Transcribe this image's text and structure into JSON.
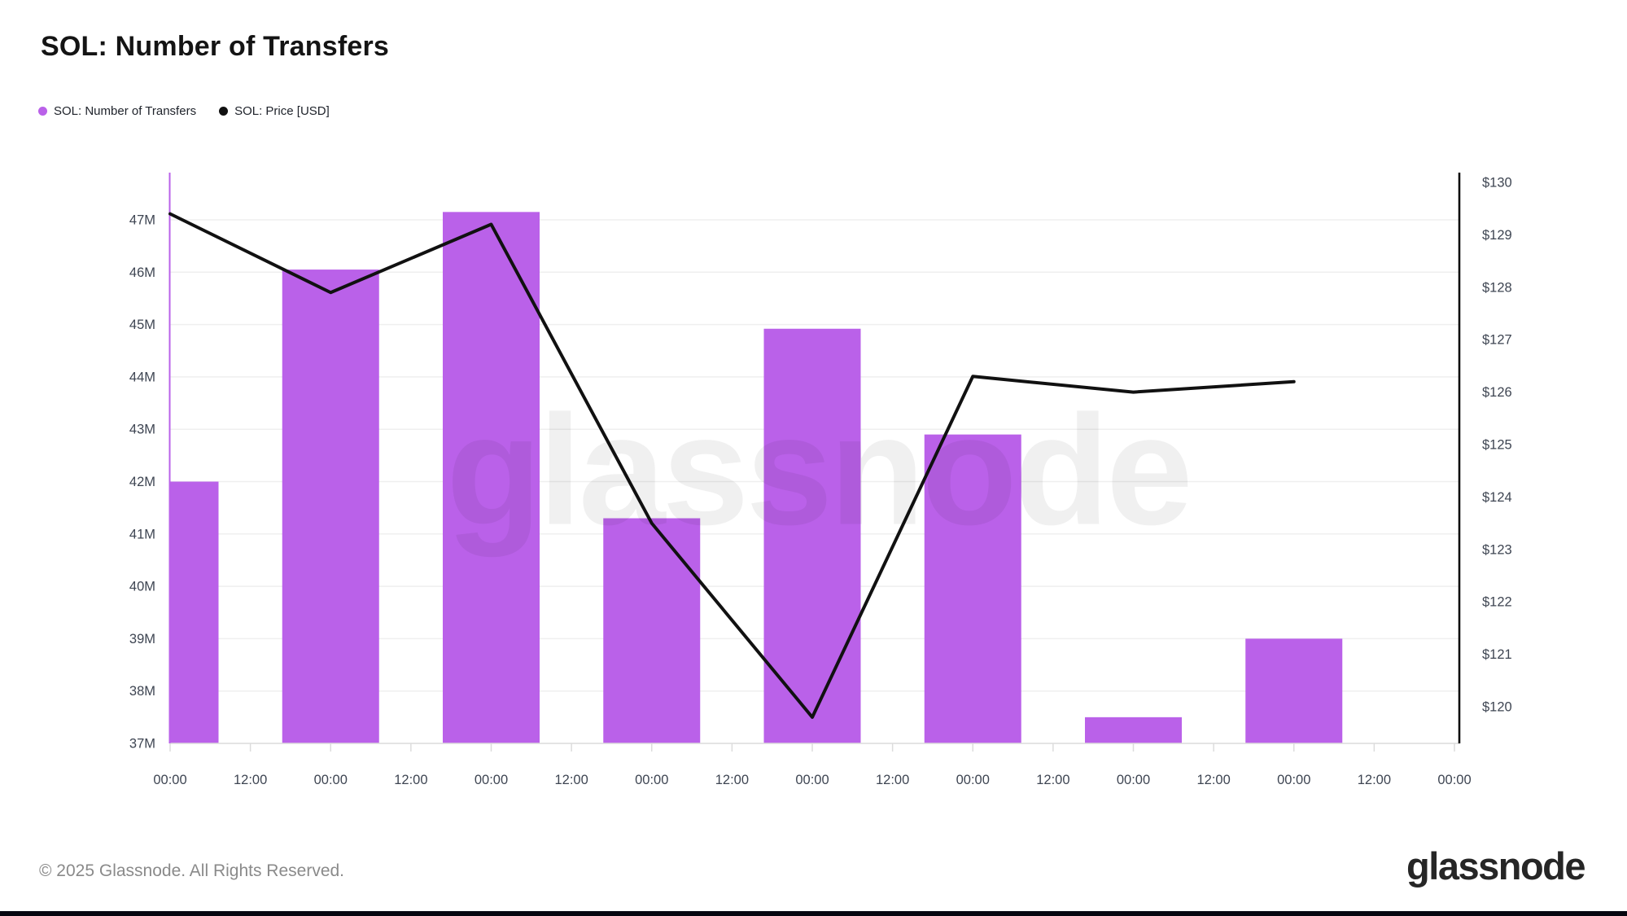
{
  "page": {
    "title": "SOL: Number of Transfers",
    "watermark": "glassnode",
    "footer_copyright": "© 2025 Glassnode. All Rights Reserved.",
    "footer_logo": "glassnode"
  },
  "legend": {
    "items": [
      {
        "label": "SOL: Number of Transfers",
        "color": "#ba61e9"
      },
      {
        "label": "SOL: Price [USD]",
        "color": "#111111"
      }
    ]
  },
  "colors": {
    "bar": "#ba61e9",
    "price_line": "#111111",
    "left_axis_line": "#ba61e9",
    "right_axis_line": "#000000",
    "grid": "#efefef",
    "x_axis_line": "#dcdcdc",
    "axis_label": "#3e4552"
  },
  "chart_data": {
    "type": "combo",
    "title": "SOL: Number of Transfers",
    "x_axis": {
      "tick_labels": [
        "00:00",
        "12:00",
        "00:00",
        "12:00",
        "00:00",
        "12:00",
        "00:00",
        "12:00",
        "00:00",
        "12:00",
        "00:00",
        "12:00",
        "00:00",
        "12:00",
        "00:00",
        "12:00",
        "00:00"
      ],
      "data_tick_indices": [
        0,
        2,
        4,
        6,
        8,
        10,
        12,
        14
      ],
      "note_visible_grid": "horizontal gridlines only"
    },
    "left_axis": {
      "tick_labels": [
        "47M",
        "46M",
        "45M",
        "44M",
        "43M",
        "42M",
        "41M",
        "40M",
        "39M",
        "38M",
        "37M"
      ],
      "min": 37000000,
      "unit": "transfers"
    },
    "right_axis": {
      "tick_labels": [
        "$130",
        "$129",
        "$128",
        "$127",
        "$126",
        "$125",
        "$124",
        "$123",
        "$122",
        "$121",
        "$120"
      ]
    },
    "series": [
      {
        "name": "SOL: Number of Transfers",
        "type": "bar",
        "axis": "left",
        "color": "#ba61e9",
        "values": [
          42000000,
          46050000,
          47150000,
          41300000,
          44920000,
          42900000,
          37500000,
          39000000
        ]
      },
      {
        "name": "SOL: Price [USD]",
        "type": "line",
        "axis": "right",
        "color": "#111111",
        "values": [
          129.4,
          127.9,
          129.2,
          123.5,
          119.8,
          126.3,
          126.0,
          126.2
        ]
      }
    ],
    "legend_position": "top-left"
  }
}
